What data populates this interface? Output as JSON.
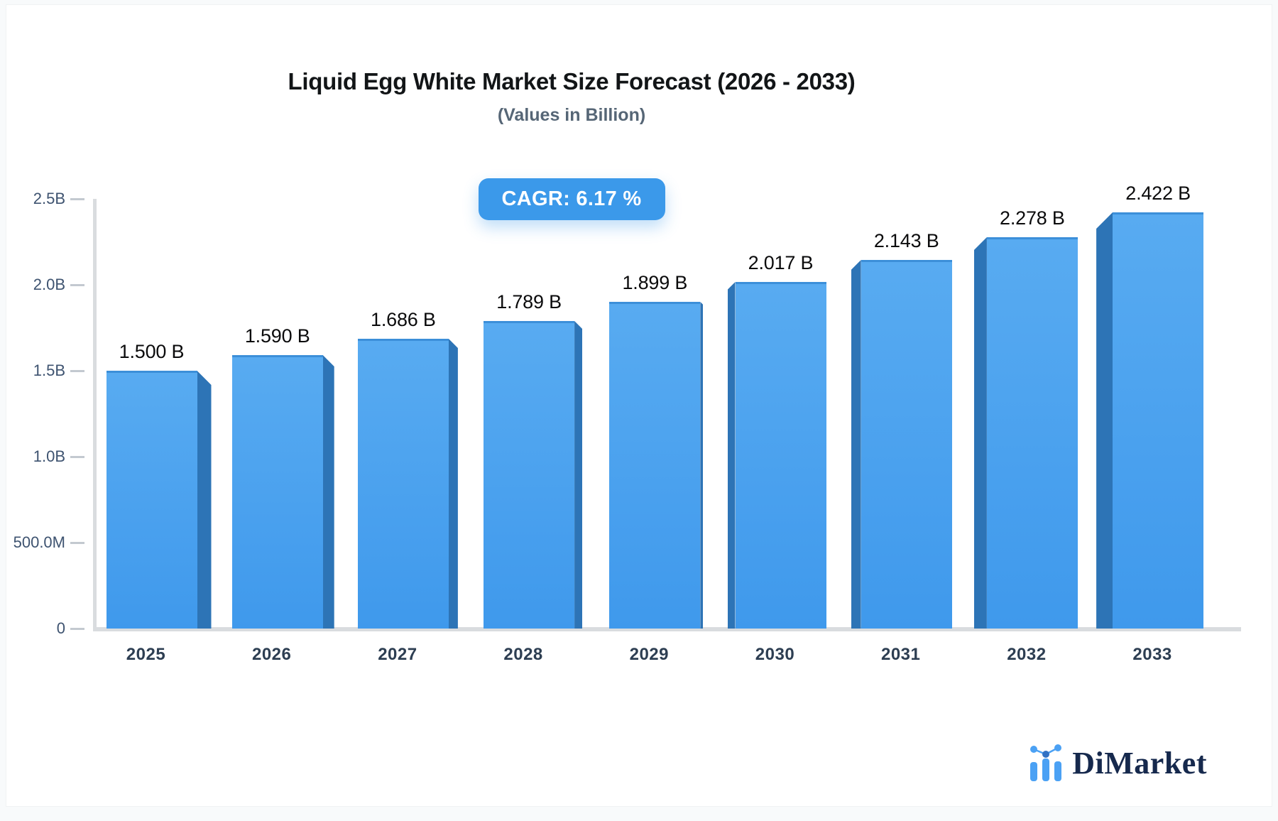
{
  "title": "Liquid Egg White Market Size Forecast (2026 - 2033)",
  "subtitle": "(Values in Billion)",
  "cagr_label": "CAGR: 6.17 %",
  "logo_text": "DiMarket",
  "chart_data": {
    "type": "bar",
    "title": "Liquid Egg White Market Size Forecast (2026 - 2033)",
    "subtitle": "(Values in Billion)",
    "cagr": "6.17 %",
    "categories": [
      "2025",
      "2026",
      "2027",
      "2028",
      "2029",
      "2030",
      "2031",
      "2032",
      "2033"
    ],
    "values": [
      1.5,
      1.59,
      1.686,
      1.789,
      1.899,
      2.017,
      2.143,
      2.278,
      2.422
    ],
    "value_labels": [
      "1.500 B",
      "1.590 B",
      "1.686 B",
      "1.789 B",
      "1.899 B",
      "2.017 B",
      "2.143 B",
      "2.278 B",
      "2.422 B"
    ],
    "y_ticks": [
      {
        "label": "2.5B",
        "value": 2.5
      },
      {
        "label": "2.0B",
        "value": 2.0
      },
      {
        "label": "1.5B",
        "value": 1.5
      },
      {
        "label": "1.0B",
        "value": 1.0
      },
      {
        "label": "500.0M",
        "value": 0.5
      },
      {
        "label": "0",
        "value": 0
      }
    ],
    "ylim": [
      0,
      2.5
    ],
    "xlabel": "",
    "ylabel": "",
    "grid": false,
    "legend": false
  },
  "colors": {
    "bar_face_top": "#58abf1",
    "bar_face_bottom": "#3f99ec",
    "bar_side": "#2d74b6",
    "bar_top_edge": "#3c8fd9",
    "badge_bg": "#3b99ea",
    "axis_line": "#d9dcdf",
    "tick_dash": "#c3c9d0",
    "y_label": "#3e5370",
    "x_label": "#2d3e52",
    "value_label": "#0b0b0c",
    "subtitle_color": "#566676",
    "logo_blue": "#4ba1f4",
    "logo_dot_dark": "#3272c4",
    "logo_navy": "#16294d"
  }
}
